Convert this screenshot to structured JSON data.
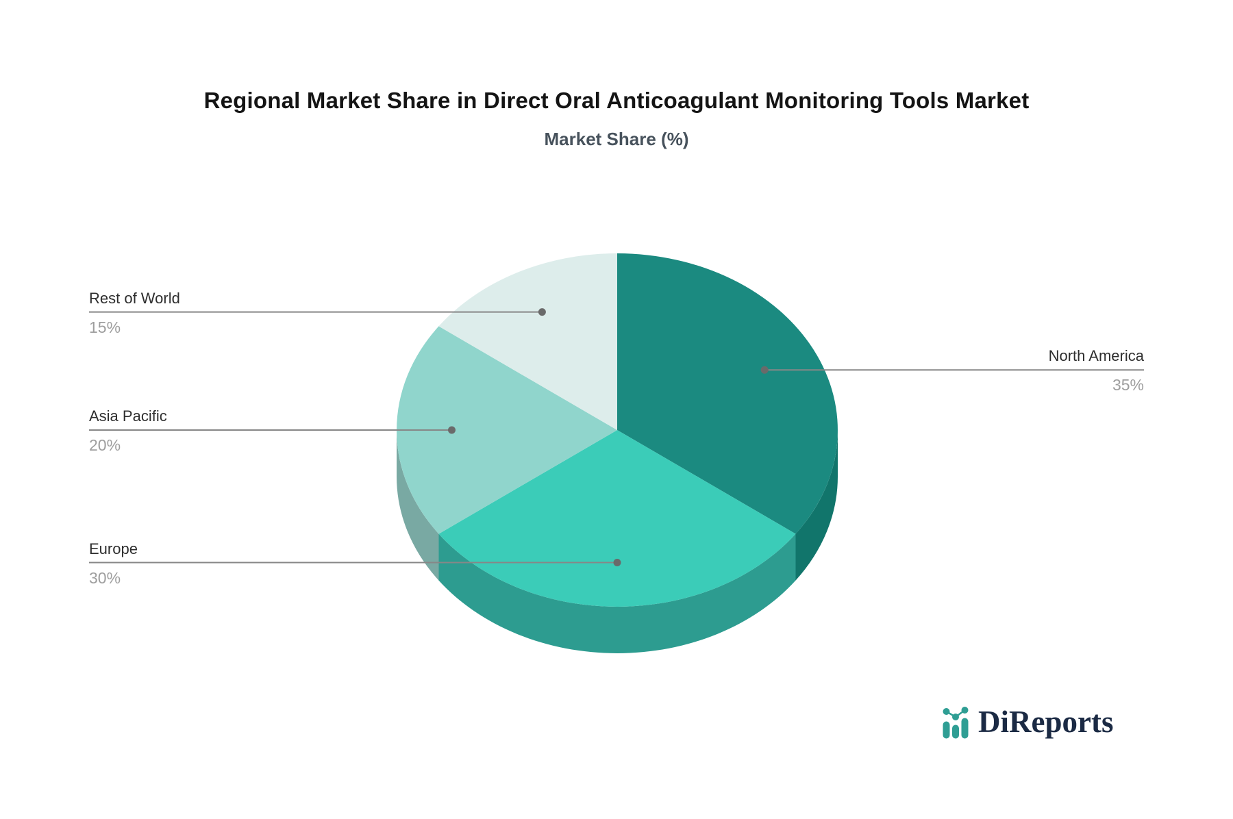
{
  "chart_data": {
    "type": "pie",
    "style": "3d",
    "title": "Regional Market Share in Direct Oral Anticoagulant Monitoring Tools Market",
    "subtitle": "Market Share (%)",
    "unit": "%",
    "direction": "clockwise",
    "start_angle": "12-oclock",
    "legend_position": "callout-labels",
    "slices": [
      {
        "label": "North America",
        "value": 35,
        "pct_label": "35%",
        "color": "#1b8a80",
        "side_color": "#11756b",
        "label_side": "right"
      },
      {
        "label": "Europe",
        "value": 30,
        "pct_label": "30%",
        "color": "#3bccb8",
        "side_color": "#2d9c90",
        "label_side": "left"
      },
      {
        "label": "Asia Pacific",
        "value": 20,
        "pct_label": "20%",
        "color": "#90d5cc",
        "side_color": "#79a9a3",
        "label_side": "left"
      },
      {
        "label": "Rest of World",
        "value": 15,
        "pct_label": "15%",
        "color": "#ddedeb",
        "side_color": "#bcd2cf",
        "label_side": "left"
      }
    ],
    "leader_line_color": "#878787",
    "leader_dot_color": "#6a6a6a",
    "label_color": "#2e2e2e",
    "pct_color": "#9e9e9e"
  },
  "logo": {
    "text": "DiReports",
    "icon": "bar-chart-logo-icon",
    "text_color": "#1b2a44",
    "icon_color": "#2f9e94"
  }
}
